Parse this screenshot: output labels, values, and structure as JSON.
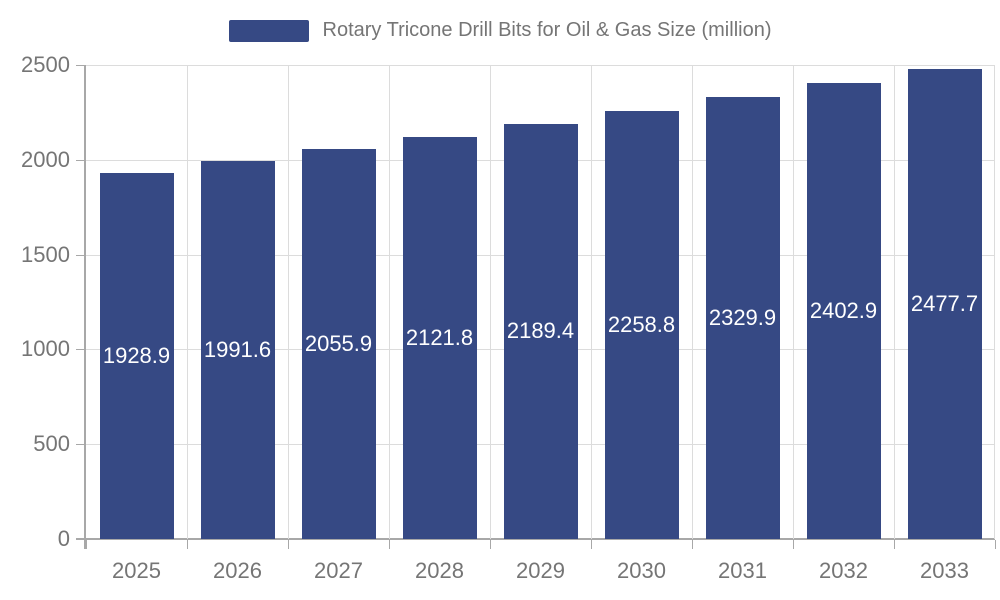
{
  "chart_data": {
    "type": "bar",
    "title": "",
    "legend_label": "Rotary Tricone Drill Bits for Oil & Gas Size (million)",
    "legend_position": "top",
    "categories": [
      "2025",
      "2026",
      "2027",
      "2028",
      "2029",
      "2030",
      "2031",
      "2032",
      "2033"
    ],
    "series": [
      {
        "name": "Rotary Tricone Drill Bits for Oil & Gas Size (million)",
        "values": [
          1928.9,
          1991.6,
          2055.9,
          2121.8,
          2189.4,
          2258.8,
          2329.9,
          2402.9,
          2477.7
        ]
      }
    ],
    "value_labels": [
      "1928.9",
      "1991.6",
      "2055.9",
      "2121.8",
      "2189.4",
      "2258.8",
      "2329.9",
      "2402.9",
      "2477.7"
    ],
    "ylim": [
      0,
      2500
    ],
    "yticks": [
      0,
      500,
      1000,
      1500,
      2000,
      2500
    ],
    "ytick_labels": [
      "0",
      "500",
      "1000",
      "1500",
      "2000",
      "2500"
    ],
    "grid": true
  },
  "colors": {
    "bar_fill": "#364984",
    "bar_value_label": "#ffffff",
    "axis_label": "#757575",
    "legend_text": "#757575",
    "gridline": "#dcdcdc",
    "axis_line": "#a8a8a8",
    "background": "#ffffff"
  }
}
